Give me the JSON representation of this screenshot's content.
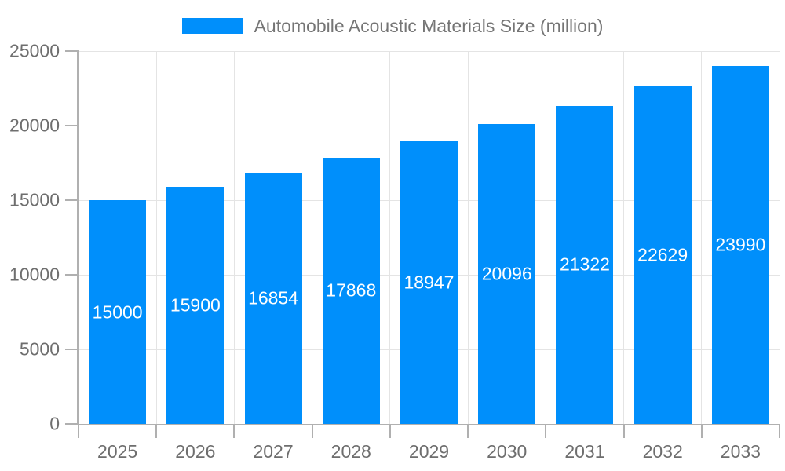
{
  "chart_data": {
    "type": "bar",
    "title": "Automobile Acoustic Materials Size (million)",
    "categories": [
      "2025",
      "2026",
      "2027",
      "2028",
      "2029",
      "2030",
      "2031",
      "2032",
      "2033"
    ],
    "values": [
      15000,
      15900,
      16854,
      17868,
      18947,
      20096,
      21322,
      22629,
      23990
    ],
    "xlabel": "",
    "ylabel": "",
    "ylim": [
      0,
      25000
    ],
    "yticks": [
      0,
      5000,
      10000,
      15000,
      20000,
      25000
    ],
    "grid": "horizontal and vertical light-gray gridlines",
    "legend_position": "top-center",
    "value_labels": "white numbers centered inside each bar"
  },
  "colors": {
    "bar": "#008FFB",
    "legend_text": "#757575",
    "axis_text": "#6e6e6e",
    "axis_line": "#b0b0b0",
    "gridline": "#e4e4e4",
    "value_text": "#ffffff",
    "background": "#ffffff"
  }
}
